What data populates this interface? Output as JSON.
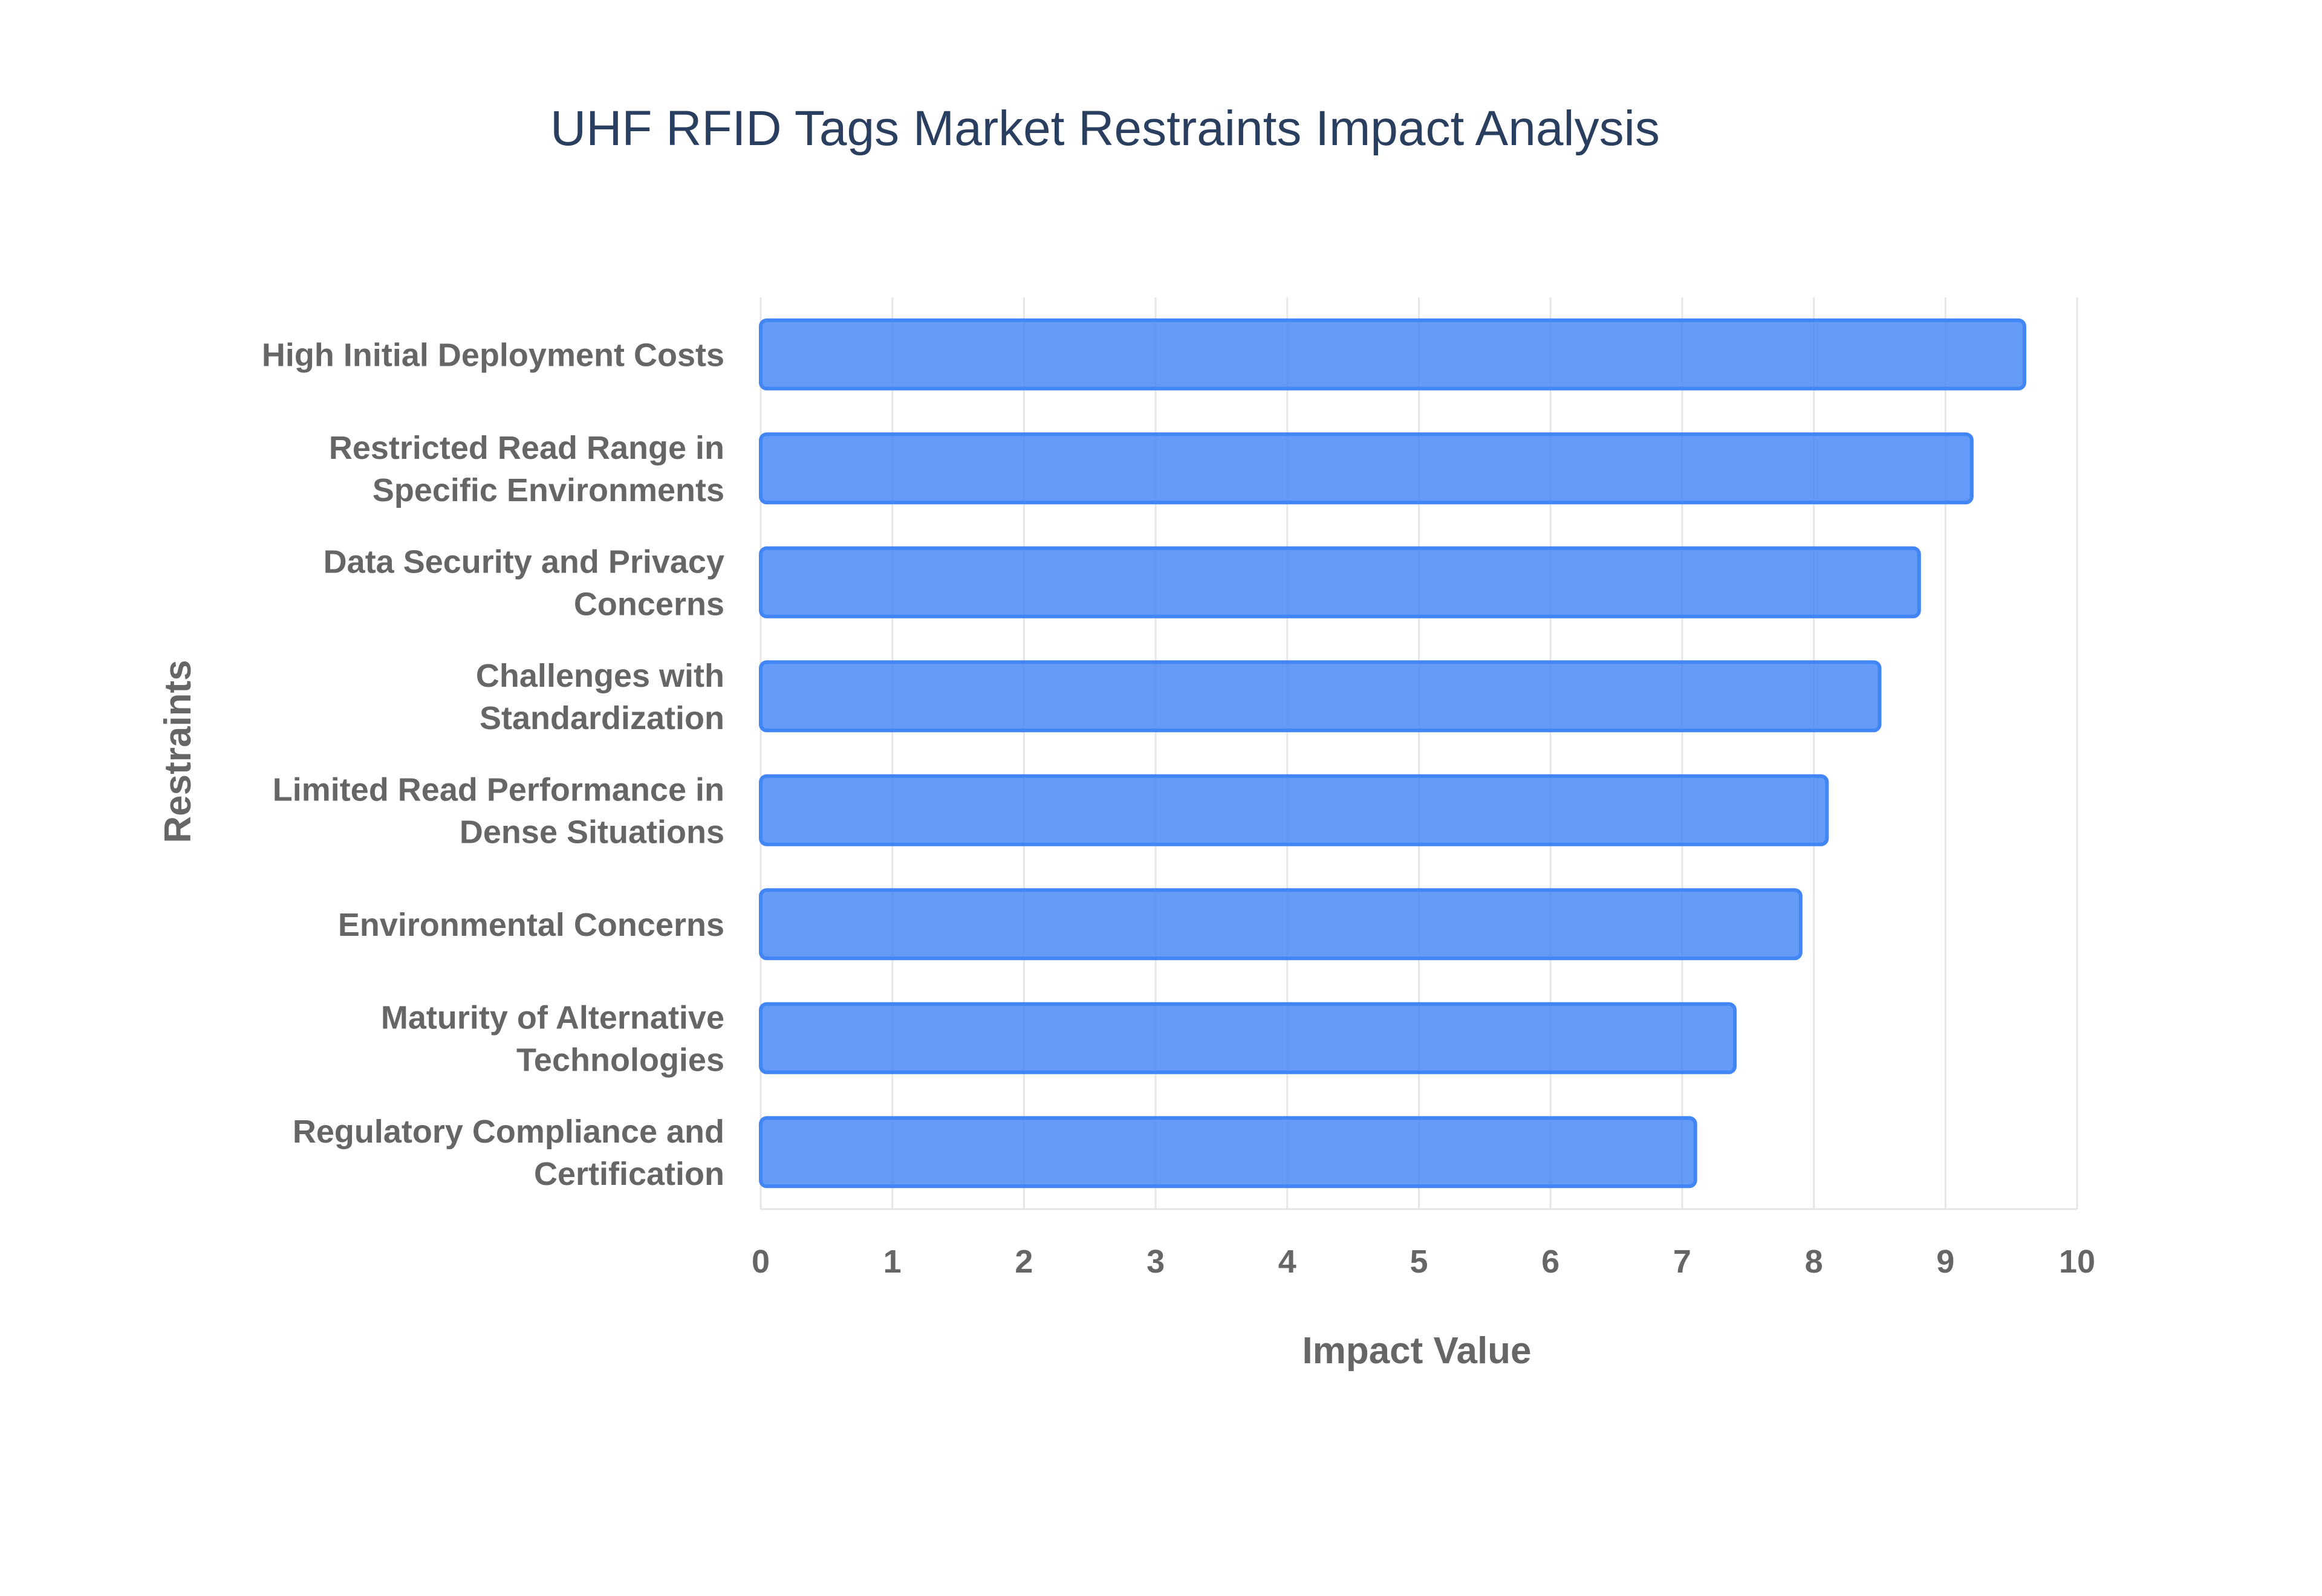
{
  "chart_data": {
    "type": "bar",
    "orientation": "horizontal",
    "title": "UHF RFID Tags Market Restraints Impact Analysis",
    "xlabel": "Impact Value",
    "ylabel": "Restraints",
    "xlim": [
      0,
      10
    ],
    "xticks": [
      "0",
      "1",
      "2",
      "3",
      "4",
      "5",
      "6",
      "7",
      "8",
      "9",
      "10"
    ],
    "grid": true,
    "bar_color": "#4285f4",
    "categories": [
      [
        "High Initial Deployment Costs"
      ],
      [
        "Restricted Read Range in",
        "Specific Environments"
      ],
      [
        "Data Security and Privacy",
        "Concerns"
      ],
      [
        "Challenges with",
        "Standardization"
      ],
      [
        "Limited Read Performance in",
        "Dense Situations"
      ],
      [
        "Environmental Concerns"
      ],
      [
        "Maturity of Alternative",
        "Technologies"
      ],
      [
        "Regulatory Compliance and",
        "Certification"
      ]
    ],
    "values": [
      9.6,
      9.2,
      8.8,
      8.5,
      8.1,
      7.9,
      7.4,
      7.1
    ]
  }
}
